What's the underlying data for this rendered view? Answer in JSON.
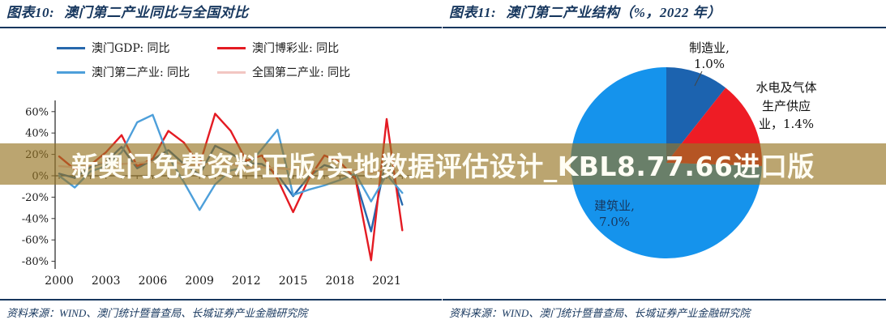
{
  "watermark": {
    "text": "新奥门免费资料正版,实地数据评估设计_KBL8.77.66进口版",
    "band_color_rgba": "rgba(151,116,36,0.65)",
    "text_color": "#FFFDF4"
  },
  "left_panel": {
    "figure_label": "图表10:",
    "figure_title": "澳门第二产业同比与全国对比",
    "source_prefix": "资料来源：",
    "source_text": "WIND、澳门统计暨普查局、长城证券产业金融研究院"
  },
  "right_panel": {
    "figure_label": "图表11:",
    "figure_title": "澳门第二产业结构（%，2022 年）",
    "source_prefix": "资料来源：",
    "source_text": "WIND、澳门统计暨普查局、长城证券产业金融研究院"
  },
  "chart_data": [
    {
      "type": "line",
      "title": "澳门第二产业同比与全国对比",
      "x_years": [
        2000,
        2001,
        2002,
        2003,
        2004,
        2005,
        2006,
        2007,
        2008,
        2009,
        2010,
        2011,
        2012,
        2013,
        2014,
        2015,
        2016,
        2017,
        2018,
        2019,
        2020,
        2021,
        2022
      ],
      "x_tick_labels": [
        "2000",
        "2003",
        "2006",
        "2009",
        "2012",
        "2015",
        "2018",
        "2021"
      ],
      "y_tick_labels": [
        "60%",
        "40%",
        "20%",
        "0%",
        "-20%",
        "-40%",
        "-60%",
        "-80%"
      ],
      "ylim": [
        -80,
        60
      ],
      "unit": "%",
      "grid": false,
      "legend_position": "top-left",
      "series": [
        {
          "name": "澳门GDP: 同比",
          "color": "#2768AD",
          "values": [
            2,
            -2,
            8,
            13,
            27,
            7,
            15,
            24,
            11,
            1,
            28,
            21,
            12,
            11,
            1,
            -19,
            -1,
            10,
            6,
            -3,
            -52,
            18,
            -27
          ]
        },
        {
          "name": "澳门博彩业: 同比",
          "color": "#E41B23",
          "values": [
            18,
            6,
            10,
            22,
            38,
            9,
            16,
            42,
            31,
            10,
            58,
            42,
            14,
            19,
            -3,
            -34,
            -3,
            19,
            13,
            -3,
            -79,
            53,
            -51
          ]
        },
        {
          "name": "澳门第二产业: 同比",
          "color": "#4D9FDA",
          "values": [
            0,
            -11,
            4,
            9,
            22,
            50,
            57,
            18,
            -6,
            -32,
            -8,
            5,
            8,
            25,
            43,
            -18,
            -13,
            -9,
            -4,
            2,
            -24,
            1,
            -16
          ]
        },
        {
          "name": "全国第二产业: 同比",
          "color": "#F2C6C2",
          "values": [
            9,
            8,
            10,
            13,
            11,
            12,
            13,
            15,
            10,
            10,
            12,
            11,
            8,
            8,
            7,
            6,
            6,
            6,
            6,
            5,
            2,
            8,
            4
          ]
        }
      ]
    },
    {
      "type": "pie",
      "title": "澳门第二产业结构（%，2022 年）",
      "unit": "%",
      "slices": [
        {
          "label": "制造业",
          "value": 1.0,
          "color": "#1C63AF",
          "label_lines": [
            "制造业,",
            "1.0%"
          ],
          "label_pos": "top-outside"
        },
        {
          "label": "水电及气体生产供应业",
          "value": 1.4,
          "color": "#EE1C25",
          "label_lines": [
            "水电及气体",
            "生产供应",
            "业，1.4%"
          ],
          "label_pos": "right-outside"
        },
        {
          "label": "建筑业",
          "value": 7.0,
          "color": "#1593EC",
          "label_lines": [
            "建筑业,",
            "7.0%"
          ],
          "label_pos": "inside-left"
        }
      ]
    }
  ]
}
